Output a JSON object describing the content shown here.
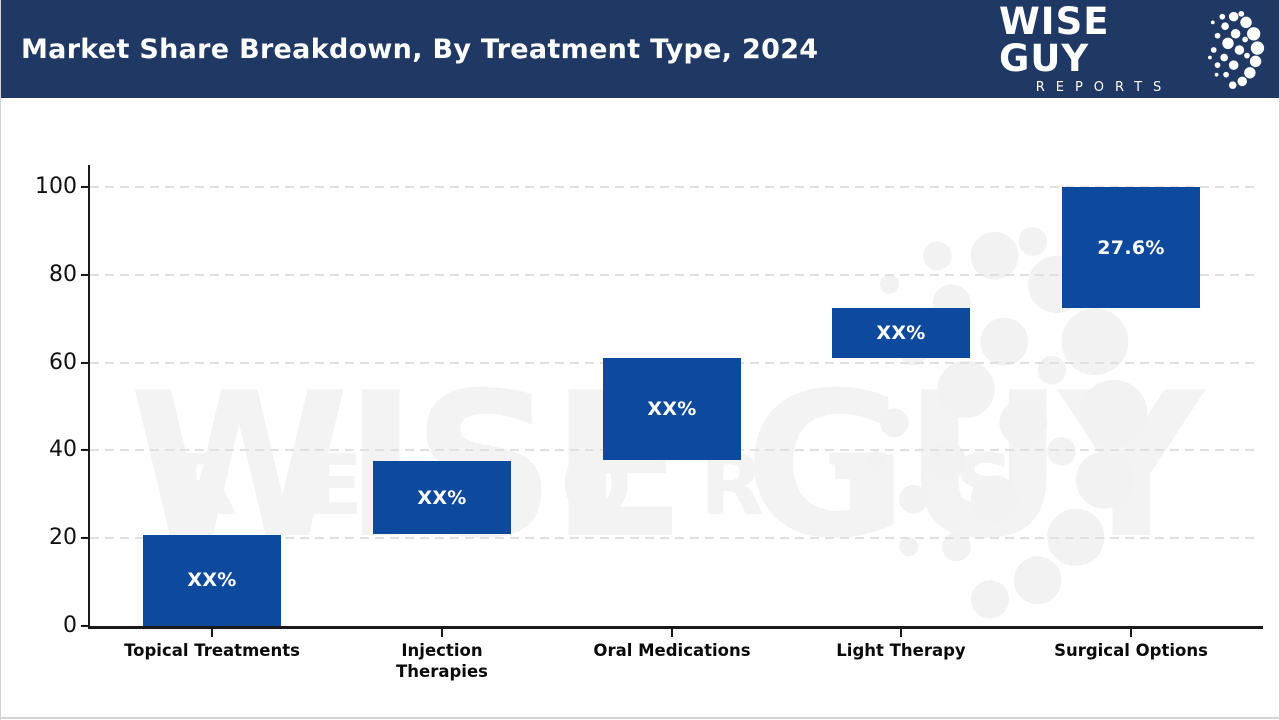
{
  "header": {
    "title": "Market Share Breakdown, By Treatment Type, 2024",
    "logo": {
      "line1": "WISE GUY",
      "line2": "REPORTS"
    }
  },
  "watermark": {
    "line1": "WISE GUY",
    "line2": "REPORTS"
  },
  "colors": {
    "header_bg": "#1f3864",
    "bar": "#0d4a9e",
    "grid": "#e0e0e0",
    "axis": "#1a1a1a",
    "watermark": "#f3f3f3",
    "bar_label_text": "#ffffff"
  },
  "chart_data": {
    "type": "bar",
    "subtype": "waterfall-floating-bars",
    "title": "Market Share Breakdown, By Treatment Type, 2024",
    "categories": [
      "Topical Treatments",
      "Injection\nTherapies",
      "Oral Medications",
      "Light Therapy",
      "Surgical Options"
    ],
    "bars": [
      {
        "category": "Topical Treatments",
        "start": 0,
        "end": 20.8,
        "label": "XX%"
      },
      {
        "category": "Injection Therapies",
        "start": 20.9,
        "end": 37.6,
        "label": "XX%"
      },
      {
        "category": "Oral Medications",
        "start": 37.8,
        "end": 61.0,
        "label": "XX%"
      },
      {
        "category": "Light Therapy",
        "start": 61.0,
        "end": 72.4,
        "label": "XX%"
      },
      {
        "category": "Surgical Options",
        "start": 72.4,
        "end": 100,
        "label": "27.6%"
      }
    ],
    "yticks": [
      0,
      20,
      40,
      60,
      80,
      100
    ],
    "ylim": [
      0,
      109
    ],
    "xlabel": "",
    "ylabel": "",
    "grid": "horizontal-dashed",
    "legend": "none",
    "bar_color": "#0d4a9e",
    "value_label_color": "#ffffff"
  }
}
